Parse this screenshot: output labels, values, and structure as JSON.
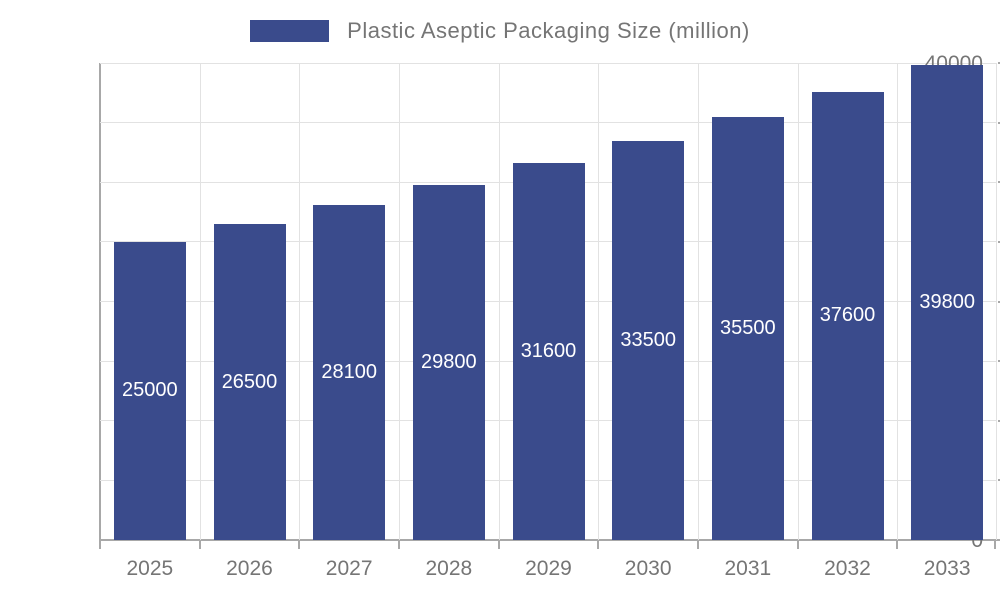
{
  "legend": {
    "label": "Plastic Aseptic Packaging Size (million)"
  },
  "colors": {
    "bar": "#3a4b8c",
    "axis": "#a8a8a8",
    "grid": "#e2e2e2",
    "tick_text": "#757575",
    "bar_label_text": "#ffffff",
    "background": "#ffffff"
  },
  "chart_data": {
    "type": "bar",
    "title": "Plastic Aseptic Packaging Size (million)",
    "categories": [
      "2025",
      "2026",
      "2027",
      "2028",
      "2029",
      "2030",
      "2031",
      "2032",
      "2033"
    ],
    "values": [
      25000,
      26500,
      28100,
      29800,
      31600,
      33500,
      35500,
      37600,
      39800
    ],
    "xlabel": "",
    "ylabel": "",
    "ylim": [
      0,
      40000
    ],
    "ytick_step": 5000,
    "yticks": [
      0,
      5000,
      10000,
      15000,
      20000,
      25000,
      30000,
      35000,
      40000
    ],
    "grid": true,
    "legend_position": "top-center",
    "bar_labels": "inside-centered"
  }
}
